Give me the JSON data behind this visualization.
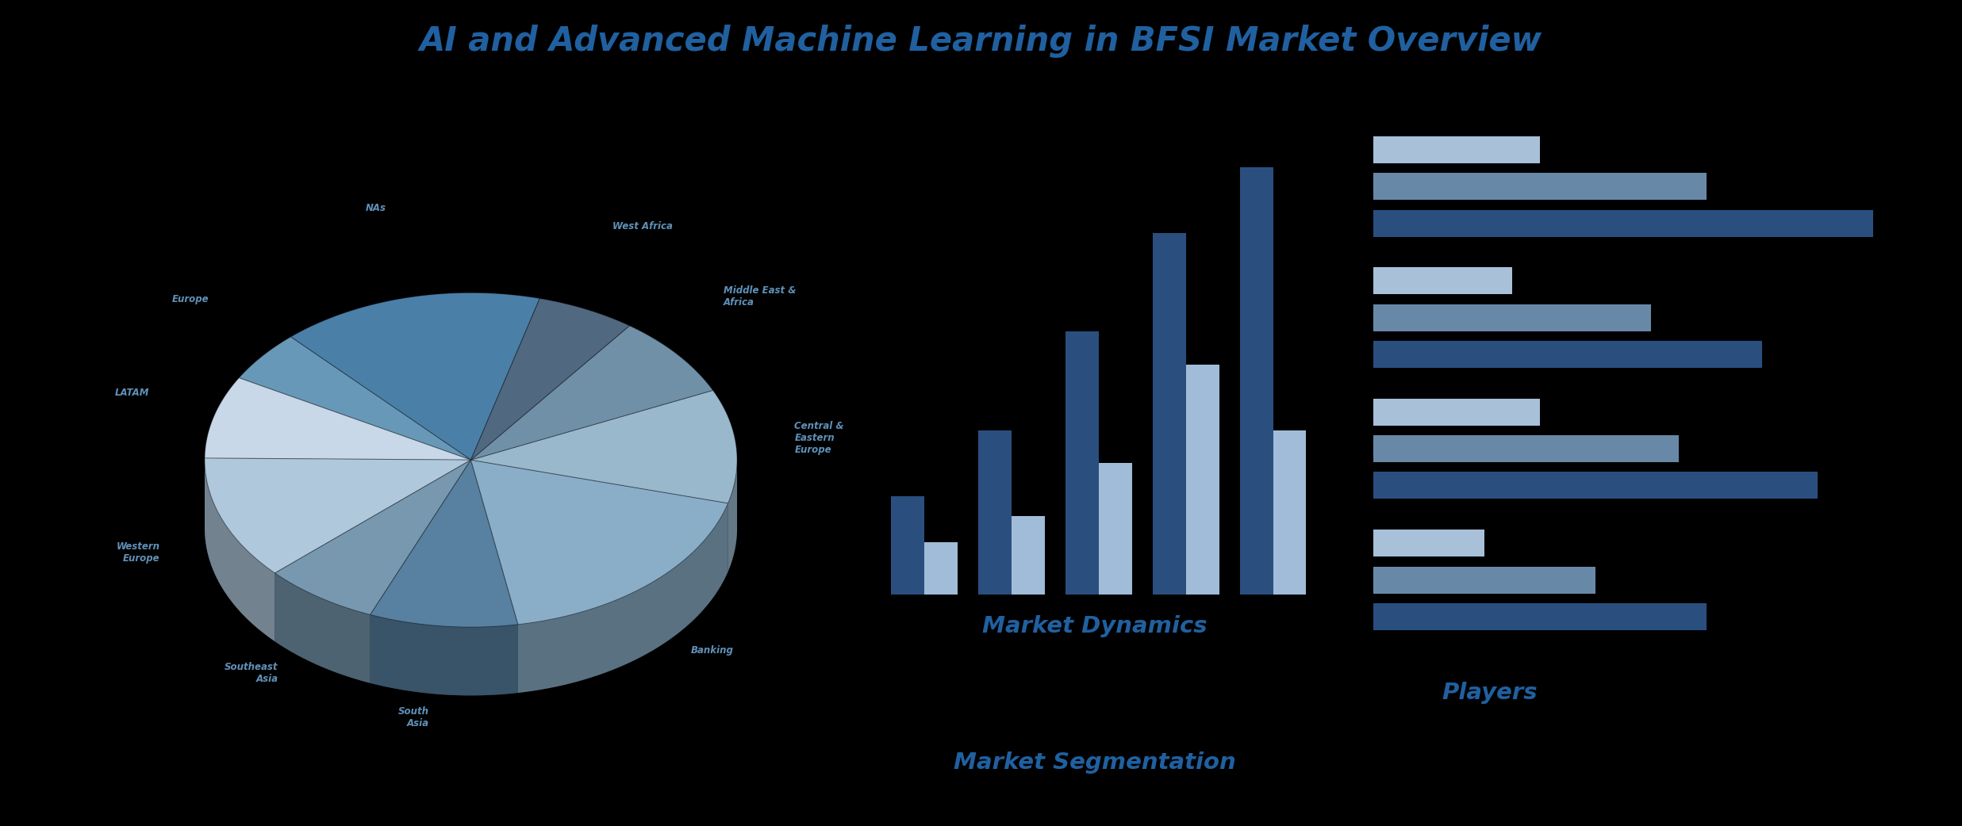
{
  "title": "AI and Advanced Machine Learning in BFSI Market Overview",
  "title_color": "#2060A0",
  "background_color": "#000000",
  "pie": {
    "labels": [
      "NAs",
      "Europe",
      "LATAM",
      "Western\nEurope",
      "Southeast\nAsia",
      "South\nAsia",
      "Banking",
      "Central &\nEastern\nEurope",
      "Middle East &\nAfrica",
      "West Africa"
    ],
    "sizes": [
      16,
      5,
      8,
      12,
      7,
      9,
      18,
      11,
      8,
      6
    ],
    "colors": [
      "#4a7fa8",
      "#6898b8",
      "#c8d8e8",
      "#b0c8dc",
      "#7898b0",
      "#5880a0",
      "#8aaec8",
      "#9ab8cc",
      "#7090a8",
      "#506880"
    ],
    "label_color": "#6090b8",
    "startangle": 75
  },
  "bar_chart": {
    "title": "Market Dynamics",
    "title_color": "#2060A0",
    "n_groups": 5,
    "series1": [
      1.5,
      2.5,
      4.0,
      5.5,
      6.5
    ],
    "series2": [
      0.8,
      1.2,
      2.0,
      3.5,
      2.5
    ],
    "color1": "#2a4f7f",
    "color2": "#a0bcd8"
  },
  "hbar_chart": {
    "title": "Players",
    "title_color": "#2060A0",
    "n_groups": 4,
    "bar1": [
      9,
      7,
      8,
      6
    ],
    "bar2": [
      6,
      5,
      5.5,
      4
    ],
    "bar3": [
      3,
      2.5,
      3,
      2
    ],
    "color1": "#2a4f7f",
    "color2": "#6888a8",
    "color3": "#a8c0d8"
  },
  "market_segmentation_label": "Market Segmentation",
  "label_color": "#2060A0"
}
